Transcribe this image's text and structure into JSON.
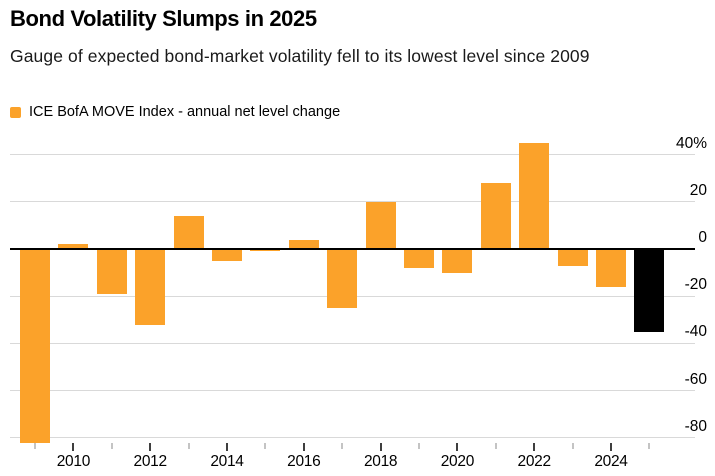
{
  "header": {
    "title": "Bond Volatility Slumps in 2025",
    "subtitle": "Gauge of expected bond-market volatility fell to its lowest level since 2009"
  },
  "legend": {
    "label": "ICE BofA MOVE Index - annual net level change"
  },
  "colors": {
    "bar_orange": "#FBA22A",
    "bar_black": "#000000",
    "gridline": "#d9d9d9",
    "zero_line": "#000000",
    "tick_major": "#3f3f3f",
    "tick_minor": "#c4c4c4",
    "text": "#000000"
  },
  "chart_data": {
    "type": "bar",
    "title": "Bond Volatility Slumps in 2025",
    "subtitle": "Gauge of expected bond-market volatility fell to its lowest level since 2009",
    "series_name": "ICE BofA MOVE Index - annual net level change",
    "categories": [
      2009,
      2010,
      2011,
      2012,
      2013,
      2014,
      2015,
      2016,
      2017,
      2018,
      2019,
      2020,
      2021,
      2022,
      2023,
      2024,
      2025
    ],
    "values": [
      -82,
      2,
      -19,
      -32,
      14,
      -5,
      -1,
      4,
      -25,
      20,
      -8,
      -10,
      28,
      45,
      -7,
      -16,
      -35
    ],
    "unit": "%",
    "highlight_year": 2025,
    "ylim": [
      -90,
      50
    ],
    "yticks": [
      40,
      20,
      0,
      -20,
      -40,
      -60,
      -80
    ],
    "ytick_labels": [
      "40%",
      "20",
      "0",
      "-20",
      "-40",
      "-60",
      "-80"
    ],
    "xtick_labels": [
      "2010",
      "2012",
      "2014",
      "2016",
      "2018",
      "2020",
      "2022",
      "2024"
    ],
    "grid": "horizontal",
    "legend_position": "top-left",
    "bar_color": "#FBA22A",
    "highlight_color": "#000000"
  }
}
